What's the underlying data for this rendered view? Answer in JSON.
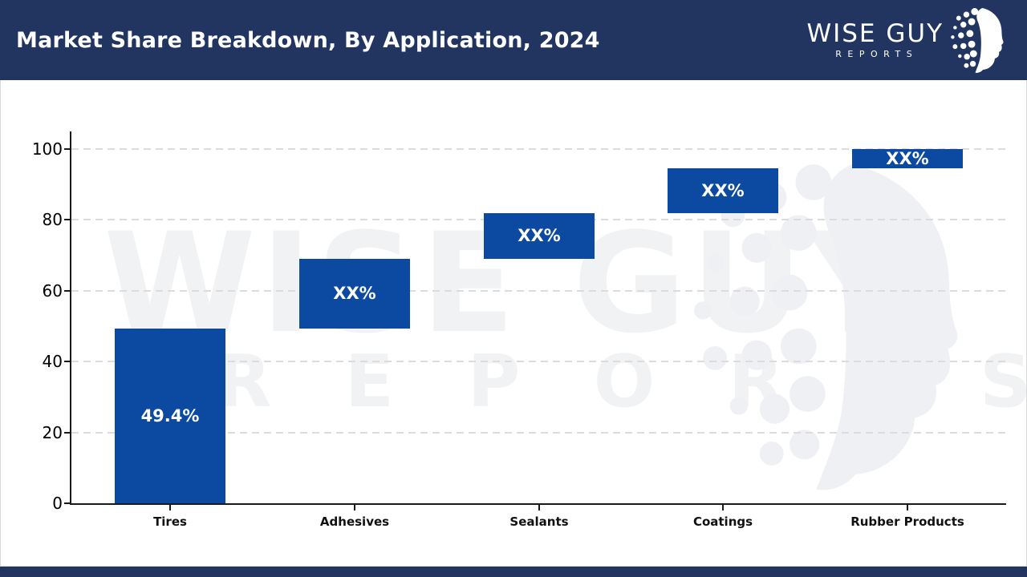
{
  "header": {
    "title": "Market Share Breakdown, By Application, 2024",
    "logo": {
      "line1": "WISE GUY",
      "line2": "REPORTS"
    }
  },
  "watermark": {
    "line1": "WISE GUY",
    "line2": "REPORTS"
  },
  "colors": {
    "header_bg": "#213560",
    "footer_bg": "#213560",
    "bar": "#0b4aa0",
    "bar_label": "#ffffff",
    "grid": "#dcdcdc",
    "axis": "#1a1a1a",
    "watermark": "#f1f2f4"
  },
  "chart_data": {
    "type": "bar",
    "subtype": "waterfall",
    "title": "Market Share Breakdown, By Application, 2024",
    "categories": [
      "Tires",
      "Adhesives",
      "Sealants",
      "Coatings",
      "Rubber Products"
    ],
    "bars": [
      {
        "category": "Tires",
        "start": 0,
        "end": 49.4,
        "label": "49.4%"
      },
      {
        "category": "Adhesives",
        "start": 49.4,
        "end": 69,
        "label": "XX%"
      },
      {
        "category": "Sealants",
        "start": 69,
        "end": 82,
        "label": "XX%"
      },
      {
        "category": "Coatings",
        "start": 82,
        "end": 94.5,
        "label": "XX%"
      },
      {
        "category": "Rubber Products",
        "start": 94.5,
        "end": 100,
        "label": "XX%"
      }
    ],
    "yticks": [
      0,
      20,
      40,
      60,
      80,
      100
    ],
    "ylim": [
      0,
      105
    ],
    "xlabel": "",
    "ylabel": "",
    "grid": "horizontal-dashed",
    "legend": "none",
    "bar_value_unit": "%"
  }
}
